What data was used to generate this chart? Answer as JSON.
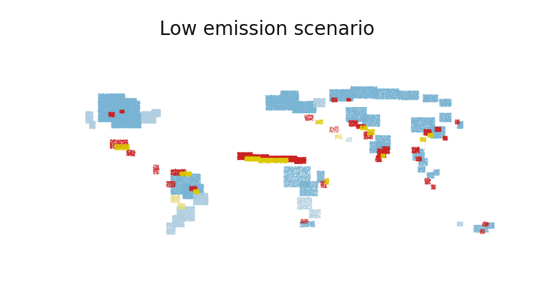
{
  "title": "Low emission scenario",
  "title_fontsize": 20,
  "background_color": "#ffffff",
  "ocean_color": "#ffffff",
  "land_base_color": "#d4d4d4",
  "border_color": "#222222",
  "fig_width": 7.77,
  "fig_height": 4.11,
  "dpi": 100,
  "xlim": [
    -180,
    180
  ],
  "ylim": [
    -60,
    85
  ]
}
